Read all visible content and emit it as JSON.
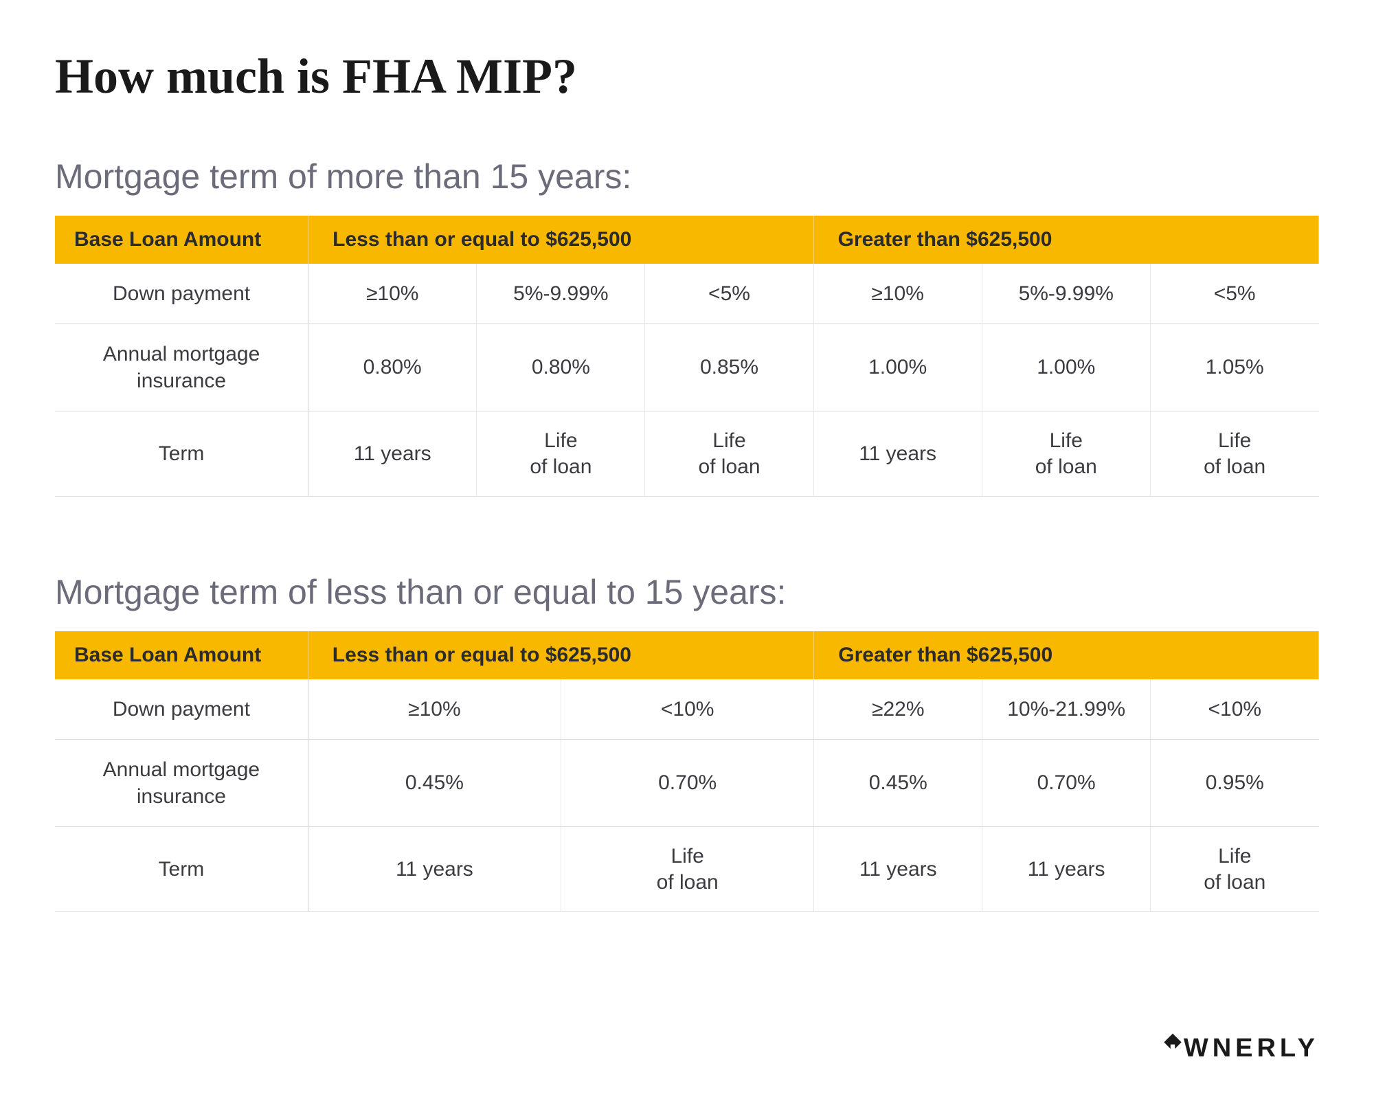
{
  "title": "How much is FHA MIP?",
  "colors": {
    "header_bg": "#f8b800",
    "header_text": "#2b2b2b",
    "section_heading_text": "#6b6b7a",
    "body_text": "#3b3b42",
    "border": "#d9d9d9",
    "background": "#ffffff"
  },
  "typography": {
    "title_fontsize": 72,
    "section_heading_fontsize": 50,
    "table_header_fontsize": 30,
    "cell_fontsize": 30,
    "title_family": "Georgia, serif",
    "body_family": "Arial, sans-serif"
  },
  "section1": {
    "heading": "Mortgage term of more than 15 years:",
    "headers": {
      "base_loan": "Base Loan Amount",
      "lte": "Less than or equal to $625,500",
      "gt": "Greater than $625,500"
    },
    "rows": {
      "down_payment": {
        "label": "Down payment",
        "lte": [
          "≥10%",
          "5%-9.99%",
          "<5%"
        ],
        "gt": [
          "≥10%",
          "5%-9.99%",
          "<5%"
        ]
      },
      "annual_mi": {
        "label": "Annual mortgage\ninsurance",
        "lte": [
          "0.80%",
          "0.80%",
          "0.85%"
        ],
        "gt": [
          "1.00%",
          "1.00%",
          "1.05%"
        ]
      },
      "term": {
        "label": "Term",
        "lte": [
          "11 years",
          "Life\nof loan",
          "Life\nof loan"
        ],
        "gt": [
          "11 years",
          "Life\nof loan",
          "Life\nof loan"
        ]
      }
    }
  },
  "section2": {
    "heading": "Mortgage term of less than or equal to 15 years:",
    "headers": {
      "base_loan": "Base Loan Amount",
      "lte": "Less than or equal to $625,500",
      "gt": "Greater than $625,500"
    },
    "rows": {
      "down_payment": {
        "label": "Down payment",
        "lte": [
          "≥10%",
          "<10%"
        ],
        "gt": [
          "≥22%",
          "10%-21.99%",
          "<10%"
        ]
      },
      "annual_mi": {
        "label": "Annual mortgage\ninsurance",
        "lte": [
          "0.45%",
          "0.70%"
        ],
        "gt": [
          "0.45%",
          "0.70%",
          "0.95%"
        ]
      },
      "term": {
        "label": "Term",
        "lte": [
          "11 years",
          "Life\nof loan"
        ],
        "gt": [
          "11 years",
          "11 years",
          "Life\nof loan"
        ]
      }
    }
  },
  "brand": {
    "text": "WNERLY",
    "icon_name": "house-diamond"
  }
}
